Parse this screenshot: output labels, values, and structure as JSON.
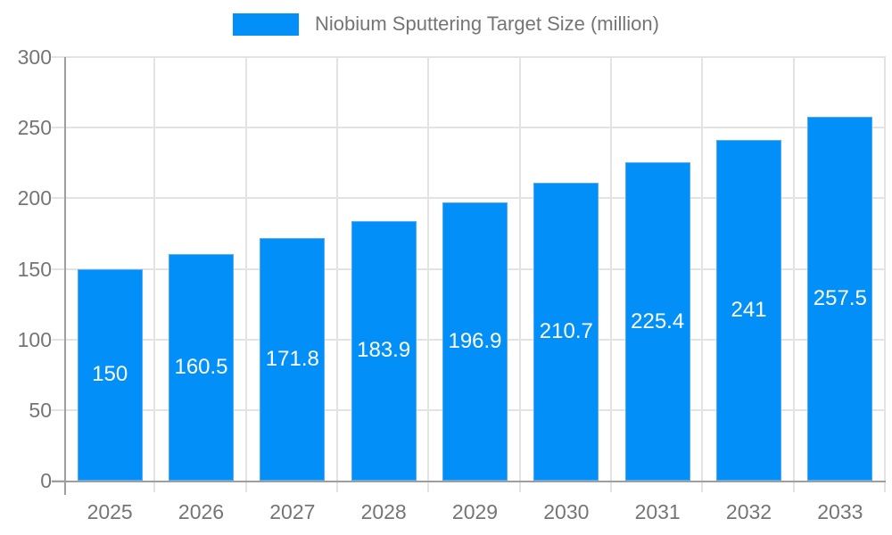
{
  "legend": {
    "label": "Niobium Sputtering Target Size (million)"
  },
  "chart_data": {
    "type": "bar",
    "title": "Niobium Sputtering Target Size (million)",
    "categories": [
      "2025",
      "2026",
      "2027",
      "2028",
      "2029",
      "2030",
      "2031",
      "2032",
      "2033"
    ],
    "values": [
      150,
      160.5,
      171.8,
      183.9,
      196.9,
      210.7,
      225.4,
      241,
      257.5
    ],
    "value_labels": [
      "150",
      "160.5",
      "171.8",
      "183.9",
      "196.9",
      "210.7",
      "225.4",
      "241",
      "257.5"
    ],
    "xlabel": "",
    "ylabel": "",
    "ylim": [
      0,
      300
    ],
    "yticks": [
      0,
      50,
      100,
      150,
      200,
      250,
      300
    ],
    "grid": true,
    "legend_position": "top",
    "bar_labels_inside": true,
    "colors": {
      "bar": "#0290f8",
      "bar_border": "#4fabfa",
      "bar_label_text": "#ffffff",
      "gridline": "#e3e3e3",
      "axis_line": "#9e9e9e",
      "axis_text": "#757575",
      "legend_text": "#757575",
      "background": "#ffffff"
    }
  }
}
